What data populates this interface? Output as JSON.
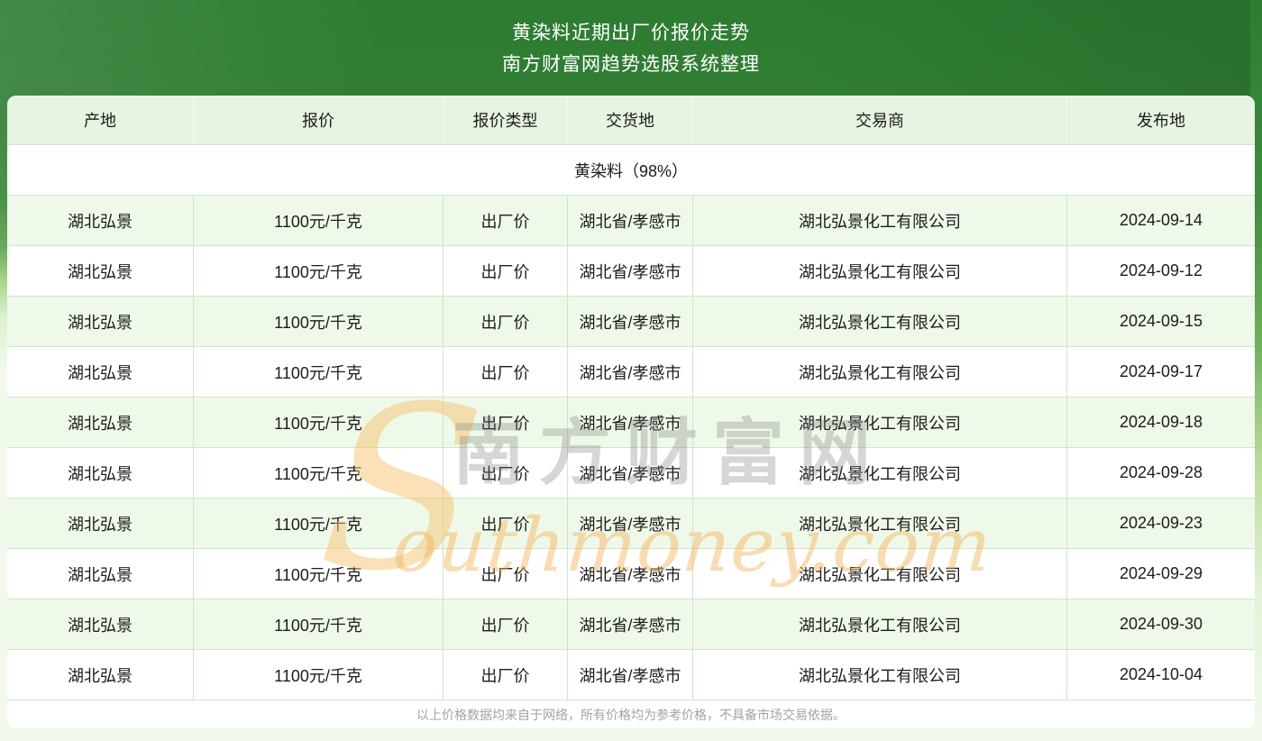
{
  "page": {
    "title_line1": "黄染料近期出厂价报价走势",
    "title_line2": "南方财富网趋势选股系统整理"
  },
  "table": {
    "columns": [
      {
        "key": "origin",
        "label": "产地"
      },
      {
        "key": "price",
        "label": "报价"
      },
      {
        "key": "price_type",
        "label": "报价类型"
      },
      {
        "key": "delivery",
        "label": "交货地"
      },
      {
        "key": "trader",
        "label": "交易商"
      },
      {
        "key": "pub_date",
        "label": "发布地"
      }
    ],
    "group_label": "黄染料（98%）",
    "rows": [
      {
        "origin": "湖北弘景",
        "price": "1100元/千克",
        "price_type": "出厂价",
        "delivery": "湖北省/孝感市",
        "trader": "湖北弘景化工有限公司",
        "pub_date": "2024-09-14"
      },
      {
        "origin": "湖北弘景",
        "price": "1100元/千克",
        "price_type": "出厂价",
        "delivery": "湖北省/孝感市",
        "trader": "湖北弘景化工有限公司",
        "pub_date": "2024-09-12"
      },
      {
        "origin": "湖北弘景",
        "price": "1100元/千克",
        "price_type": "出厂价",
        "delivery": "湖北省/孝感市",
        "trader": "湖北弘景化工有限公司",
        "pub_date": "2024-09-15"
      },
      {
        "origin": "湖北弘景",
        "price": "1100元/千克",
        "price_type": "出厂价",
        "delivery": "湖北省/孝感市",
        "trader": "湖北弘景化工有限公司",
        "pub_date": "2024-09-17"
      },
      {
        "origin": "湖北弘景",
        "price": "1100元/千克",
        "price_type": "出厂价",
        "delivery": "湖北省/孝感市",
        "trader": "湖北弘景化工有限公司",
        "pub_date": "2024-09-18"
      },
      {
        "origin": "湖北弘景",
        "price": "1100元/千克",
        "price_type": "出厂价",
        "delivery": "湖北省/孝感市",
        "trader": "湖北弘景化工有限公司",
        "pub_date": "2024-09-28"
      },
      {
        "origin": "湖北弘景",
        "price": "1100元/千克",
        "price_type": "出厂价",
        "delivery": "湖北省/孝感市",
        "trader": "湖北弘景化工有限公司",
        "pub_date": "2024-09-23"
      },
      {
        "origin": "湖北弘景",
        "price": "1100元/千克",
        "price_type": "出厂价",
        "delivery": "湖北省/孝感市",
        "trader": "湖北弘景化工有限公司",
        "pub_date": "2024-09-29"
      },
      {
        "origin": "湖北弘景",
        "price": "1100元/千克",
        "price_type": "出厂价",
        "delivery": "湖北省/孝感市",
        "trader": "湖北弘景化工有限公司",
        "pub_date": "2024-09-30"
      },
      {
        "origin": "湖北弘景",
        "price": "1100元/千克",
        "price_type": "出厂价",
        "delivery": "湖北省/孝感市",
        "trader": "湖北弘景化工有限公司",
        "pub_date": "2024-10-04"
      }
    ],
    "disclaimer": "以上价格数据均来自于网络，所有价格均为参考价格，不具备市场交易依据。"
  },
  "watermark": {
    "initial": "S",
    "script": "outhmoney.com",
    "cn": "南方财富网"
  },
  "colors": {
    "banner_green": "#2d7c32",
    "header_row_bg": "#e7f4e1",
    "alt_row_bg": "#eff9ea",
    "row_border": "#d2e4c7",
    "page_bg": "#f0f9eb",
    "watermark_orange": "#f2b256",
    "watermark_gray": "#787878",
    "disclaimer_text": "#a3a3a3"
  }
}
